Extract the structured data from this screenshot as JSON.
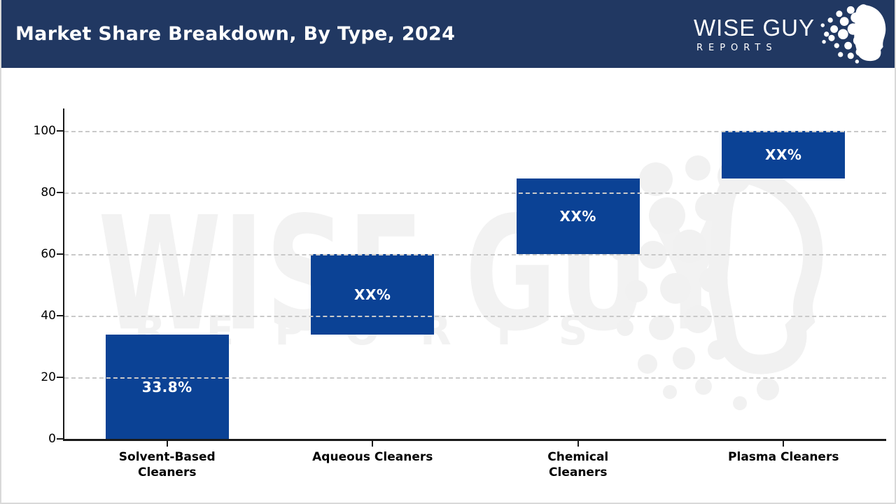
{
  "page": {
    "background": "#ffffff",
    "border_color": "#d9d9d9"
  },
  "header": {
    "title": "Market Share Breakdown, By Type, 2024",
    "background": "#213862",
    "logo": {
      "line1": "WISE GUY",
      "line2": "REPORTS"
    }
  },
  "watermark": {
    "line1": "WISE GUY",
    "line2": "REPORTS"
  },
  "chart_data": {
    "type": "bar",
    "subtype": "waterfall",
    "title": "Market Share Breakdown, By Type, 2024",
    "categories": [
      "Solvent-Based Cleaners",
      "Aqueous Cleaners",
      "Chemical Cleaners",
      "Plasma Cleaners"
    ],
    "bars": [
      {
        "category": "Solvent-Based Cleaners",
        "start": 0,
        "end": 33.8,
        "value": 33.8,
        "label": "33.8%"
      },
      {
        "category": "Aqueous Cleaners",
        "start": 33.8,
        "end": 60,
        "value": 26.2,
        "label": "XX%"
      },
      {
        "category": "Chemical Cleaners",
        "start": 60,
        "end": 84.5,
        "value": 24.5,
        "label": "XX%"
      },
      {
        "category": "Plasma Cleaners",
        "start": 84.5,
        "end": 100,
        "value": 15.5,
        "label": "XX%"
      }
    ],
    "y_ticks": [
      0,
      20,
      40,
      60,
      80,
      100
    ],
    "ylim": [
      0,
      107.3
    ],
    "xlabel": "",
    "ylabel": "",
    "bar_color": "#0B4295",
    "bar_label_color": "#ffffff",
    "grid": "horizontal-dashed",
    "gridline_color": "#c9c9c9",
    "legend": "none"
  }
}
